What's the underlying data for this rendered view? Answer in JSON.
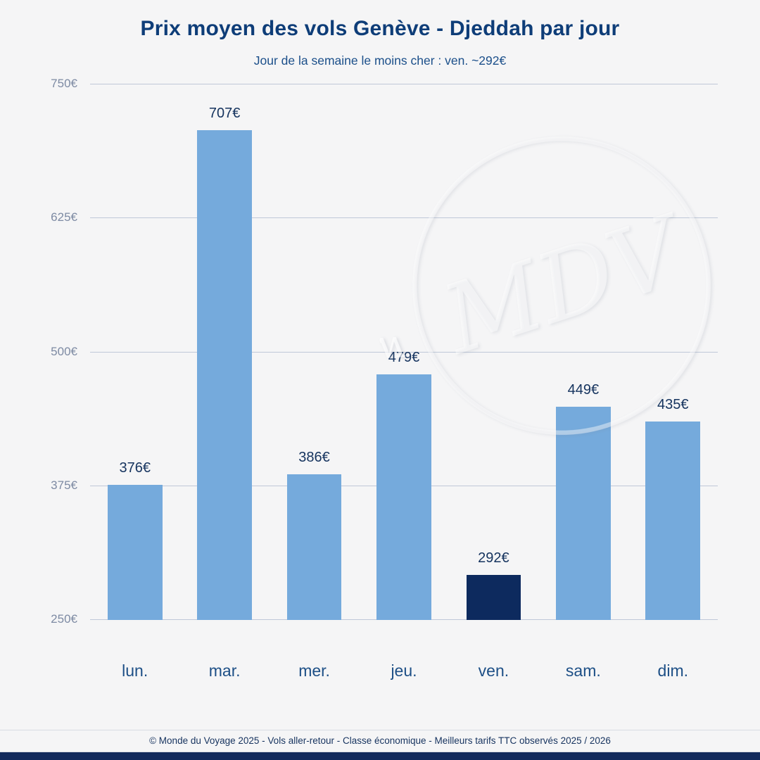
{
  "title": "Prix moyen des vols Genève - Djeddah par jour",
  "subtitle": "Jour de la semaine le moins cher : ven. ~292€",
  "footer": {
    "text": "© Monde du Voyage 2025 - Vols aller-retour - Classe économique - Meilleurs tarifs TTC observés 2025 / 2026"
  },
  "watermark": {
    "circle_text": "www.monde-du-voyage.com",
    "center_text": "MDV"
  },
  "colors": {
    "background": "#f5f5f6",
    "bar": "#75aadc",
    "bar_highlight": "#0d2a5e",
    "title": "#0e3d78",
    "grid": "#bfc8d8",
    "tick": "#7d8aa3",
    "footer_strip": "#122a5c"
  },
  "chart_data": {
    "type": "bar",
    "title": "Prix moyen des vols Genève - Djeddah par jour",
    "subtitle": "Jour de la semaine le moins cher : ven. ~292€",
    "categories": [
      "lun.",
      "mar.",
      "mer.",
      "jeu.",
      "ven.",
      "sam.",
      "dim."
    ],
    "values": [
      376,
      707,
      386,
      479,
      292,
      449,
      435
    ],
    "value_labels": [
      "376€",
      "707€",
      "386€",
      "479€",
      "292€",
      "449€",
      "435€"
    ],
    "highlight_index": 4,
    "highlight_meaning": "jour le moins cher",
    "y_ticks": [
      250,
      375,
      500,
      625,
      750
    ],
    "y_tick_labels": [
      "250€",
      "375€",
      "500€",
      "625€",
      "750€"
    ],
    "ylim": [
      250,
      750
    ],
    "xlabel": "",
    "ylabel": "",
    "grid": true,
    "legend": false
  }
}
